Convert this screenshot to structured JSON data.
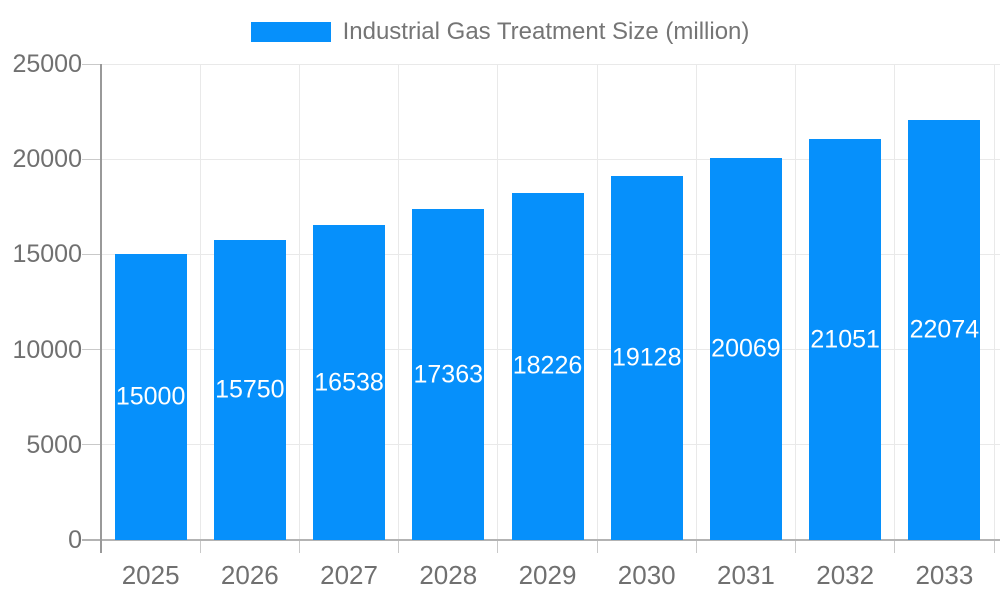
{
  "legend": {
    "label": "Industrial Gas Treatment Size (million)"
  },
  "chart_data": {
    "type": "bar",
    "title": "Industrial Gas Treatment Size (million)",
    "categories": [
      "2025",
      "2026",
      "2027",
      "2028",
      "2029",
      "2030",
      "2031",
      "2032",
      "2033"
    ],
    "series": [
      {
        "name": "Industrial Gas Treatment Size (million)",
        "values": [
          15000,
          15750,
          16538,
          17363,
          18226,
          19128,
          20069,
          21051,
          22074
        ]
      }
    ],
    "xlabel": "",
    "ylabel": "",
    "ylim": [
      0,
      25000
    ],
    "yticks": [
      0,
      5000,
      10000,
      15000,
      20000,
      25000
    ],
    "grid": true,
    "legend_position": "top-center",
    "data_labels_position": "inside-center"
  },
  "colors": {
    "bar": "#0690FB",
    "grid": "#e9e9e9",
    "tick": "#c9c9c9",
    "axis_y": "#999999",
    "axis_x": "#b3b3b3",
    "axis_text": "#707070",
    "legend_text": "#757575",
    "data_label_text": "#ffffff",
    "background": "#ffffff"
  }
}
